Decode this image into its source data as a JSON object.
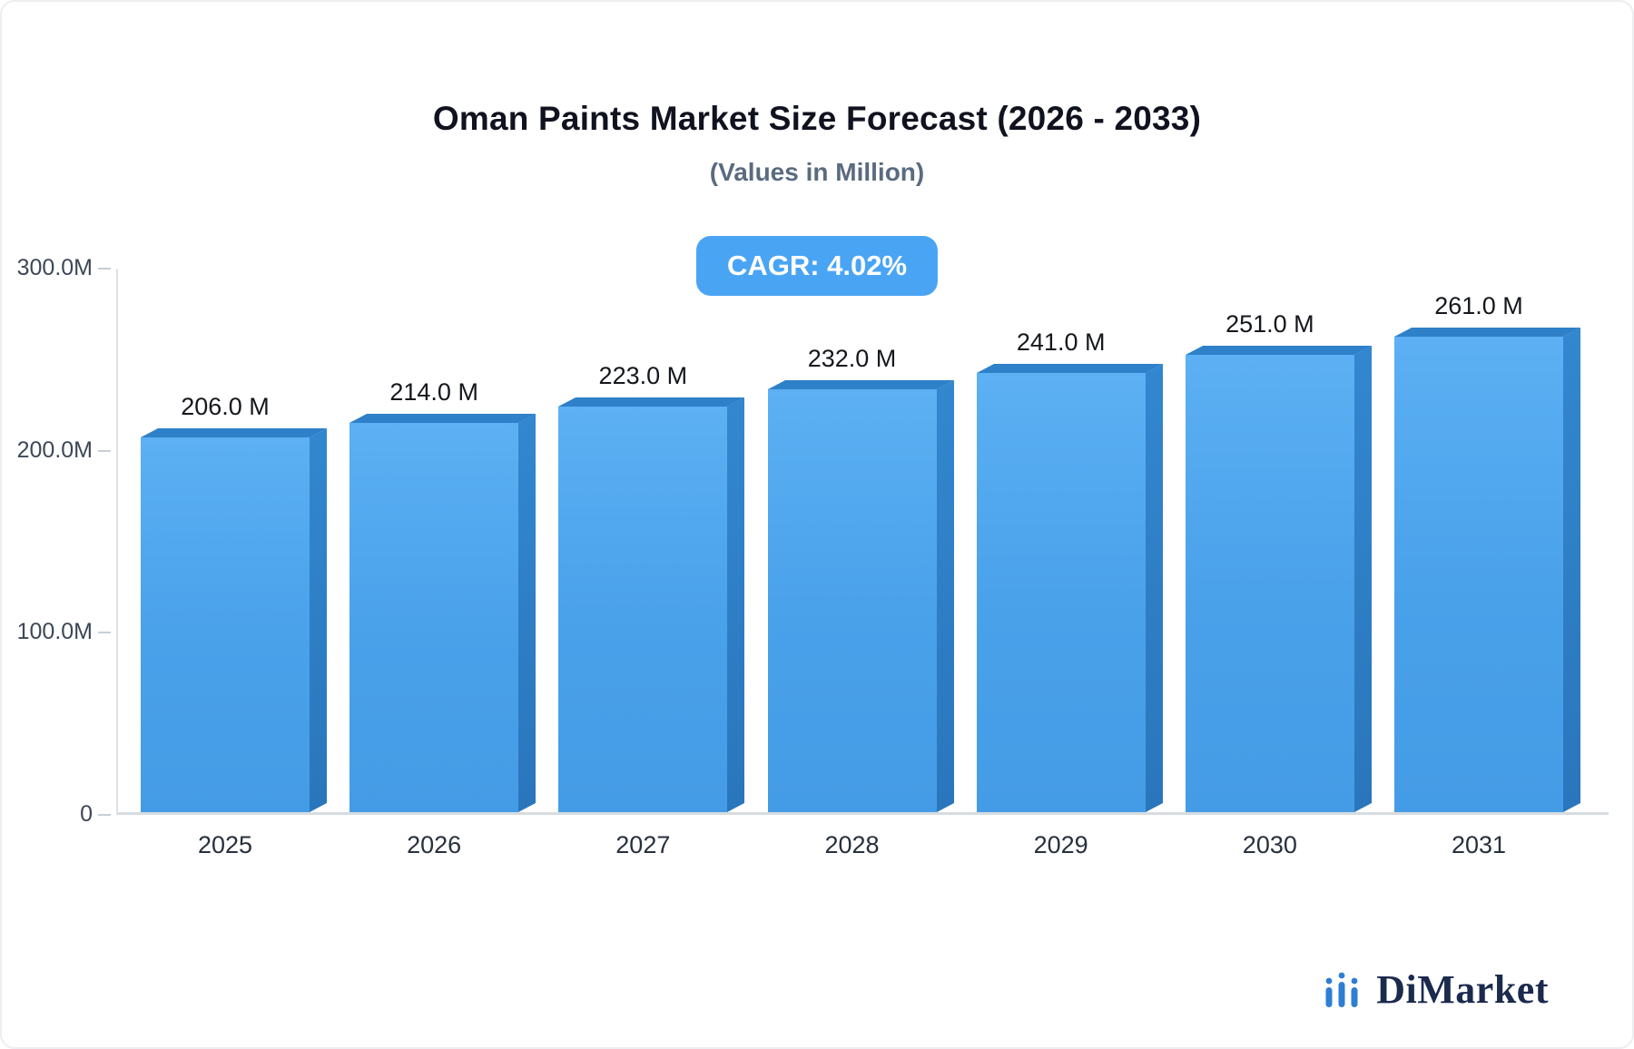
{
  "title": "Oman Paints Market Size Forecast (2026 - 2033)",
  "subtitle": "(Values in Million)",
  "cagr_badge": "CAGR: 4.02%",
  "logo_text": "DiMarket",
  "chart_data": {
    "type": "bar",
    "title": "Oman Paints Market Size Forecast (2026 - 2033)",
    "subtitle": "(Values in Million)",
    "cagr": "4.02%",
    "unit": "Million",
    "categories": [
      "2025",
      "2026",
      "2027",
      "2028",
      "2029",
      "2030",
      "2031"
    ],
    "values": [
      206.0,
      214.0,
      223.0,
      232.0,
      241.0,
      251.0,
      261.0
    ],
    "value_labels": [
      "206.0 M",
      "214.0 M",
      "223.0 M",
      "232.0 M",
      "241.0 M",
      "251.0 M",
      "261.0 M"
    ],
    "ylim": [
      0,
      300
    ],
    "yticks": [
      {
        "label": "300.0M",
        "value": 300
      },
      {
        "label": "200.0M",
        "value": 200
      },
      {
        "label": "100.0M",
        "value": 100
      },
      {
        "label": "0",
        "value": 0
      }
    ],
    "grid": false,
    "legend_position": "none",
    "bar_color": "#4aa1ea",
    "bar_side_color": "#2c7bc3",
    "bar_top_color": "#2e80c9",
    "badge_color": "#4aa4f4"
  }
}
